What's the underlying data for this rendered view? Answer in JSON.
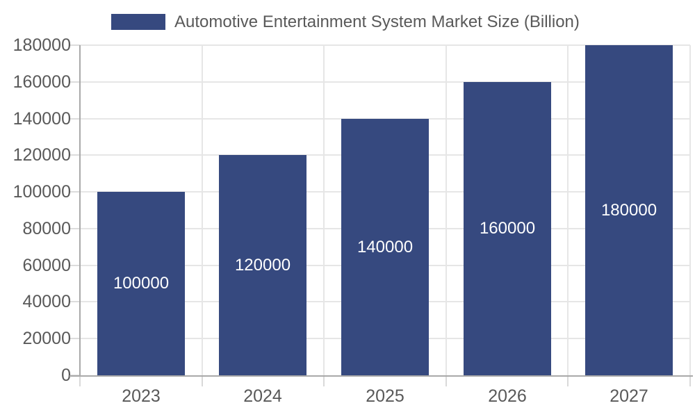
{
  "legend": {
    "label": "Automotive Entertainment System Market Size (Billion)"
  },
  "colors": {
    "bar": "#36497F",
    "bar_label": "#FFFFFF",
    "axis_text": "#595959",
    "grid_line": "#E6E6E6",
    "axis_line": "#A9A9A9"
  },
  "chart_data": {
    "type": "bar",
    "title": "Automotive Entertainment System Market Size (Billion)",
    "categories": [
      "2023",
      "2024",
      "2025",
      "2026",
      "2027"
    ],
    "series": [
      {
        "name": "Automotive Entertainment System Market Size (Billion)",
        "values": [
          100000,
          120000,
          140000,
          160000,
          180000
        ]
      }
    ],
    "bar_labels": [
      "100000",
      "120000",
      "140000",
      "160000",
      "180000"
    ],
    "xlabel": "",
    "ylabel": "",
    "ylim": [
      0,
      180000
    ],
    "ytick_step": 20000,
    "ytick_labels": [
      "0",
      "20000",
      "40000",
      "60000",
      "80000",
      "100000",
      "120000",
      "140000",
      "160000",
      "180000"
    ],
    "xtick_labels": [
      "2023",
      "2024",
      "2025",
      "2026",
      "2027"
    ],
    "grid": "both",
    "legend_position": "top"
  }
}
